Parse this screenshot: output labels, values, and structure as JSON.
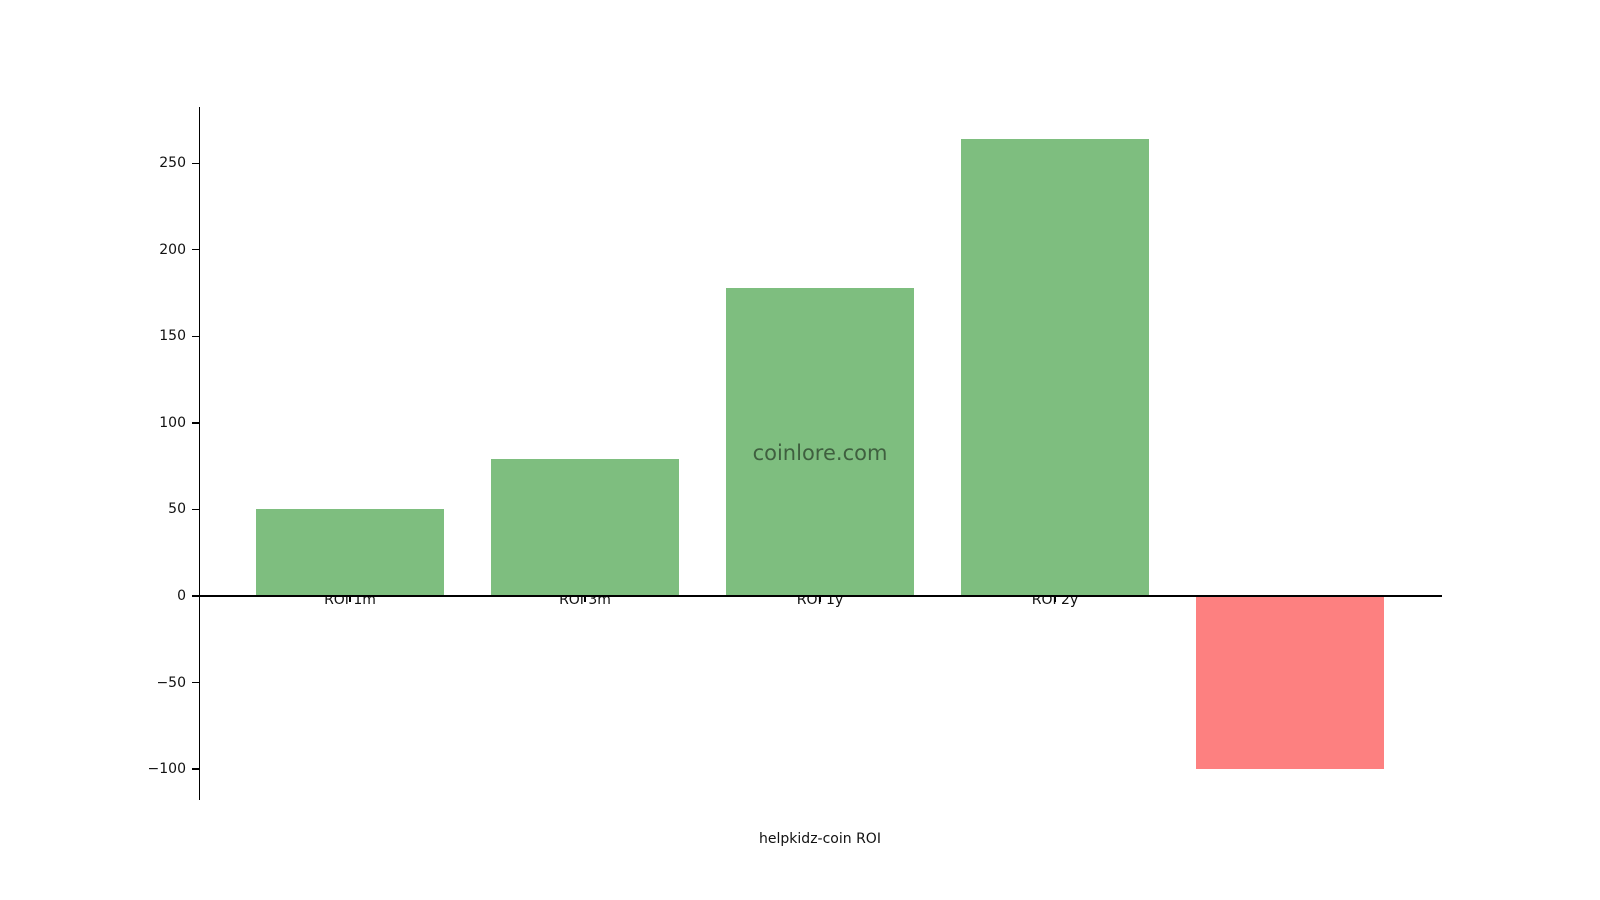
{
  "chart_data": {
    "type": "bar",
    "title": "helpkidz-coin ROI",
    "watermark": "coinlore.com",
    "categories": [
      "ROI 1m",
      "ROI 3m",
      "ROI 1y",
      "ROI 2y",
      ""
    ],
    "values": [
      50,
      79,
      178,
      264,
      -100
    ],
    "yticks": [
      250,
      200,
      150,
      100,
      50,
      0,
      -50,
      -100
    ],
    "ytick_labels": [
      "250",
      "200",
      "150",
      "100",
      "50",
      "0",
      "−50",
      "−100"
    ],
    "ylim": [
      -118,
      283
    ],
    "xlabel": "helpkidz-coin ROI",
    "ylabel": "",
    "grid": false,
    "legend": null,
    "colors": {
      "positive_bar": "#7ebe7f",
      "negative_bar": "#fd8080",
      "axis": "#000000",
      "tick_text": "#111111",
      "watermark_text": "rgba(0,0,0,0.5)"
    }
  }
}
